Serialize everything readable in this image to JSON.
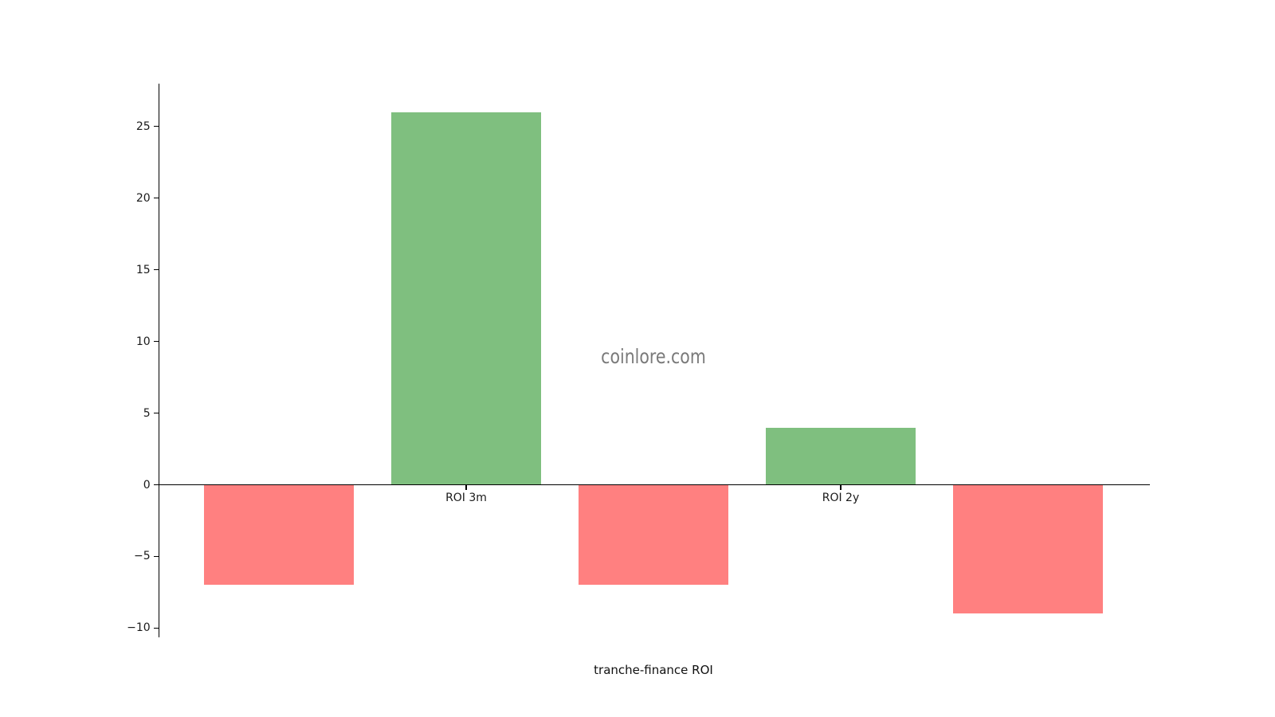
{
  "watermark": "coinlore.com",
  "chart_data": {
    "type": "bar",
    "xlabel": "tranche-finance ROI",
    "ylabel": "",
    "categories": [
      "",
      "ROI 3m",
      "",
      "ROI 2y",
      ""
    ],
    "values": [
      -7,
      26,
      -7,
      4,
      -9
    ],
    "bar_colors": [
      "#ff8080",
      "#7fbf7f",
      "#ff8080",
      "#7fbf7f",
      "#ff8080"
    ],
    "colors": {
      "positive": "#7fbf7f",
      "negative": "#ff8080",
      "axis": "#000000",
      "tick_text": "#1a1a1a",
      "watermark": "#7a7a7a"
    },
    "y_ticks": [
      25,
      20,
      15,
      10,
      5,
      0,
      -5,
      -10
    ],
    "y_tick_labels": [
      "25",
      "20",
      "15",
      "10",
      "5",
      "0",
      "−5",
      "−10"
    ],
    "ylim": [
      -10.7,
      28
    ],
    "grid": false,
    "legend_position": "none",
    "zero_line": true
  }
}
